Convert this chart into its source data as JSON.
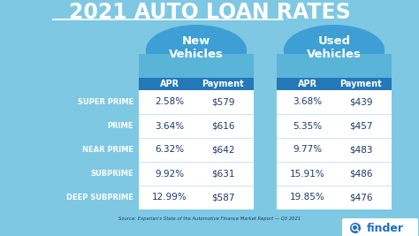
{
  "title": "2021 AUTO LOAN RATES",
  "bg_color": "#7ec8e3",
  "table_bg_light": "#5ab4d8",
  "table_header_blue": "#2d8fd4",
  "row_white": "#e8f4fc",
  "row_white2": "#d8ecf8",
  "row_divider": "#a8d4ec",
  "oval_blue": "#3d9fd4",
  "subheader_blue": "#2478b8",
  "row_categories": [
    "SUPER PRIME",
    "PRIME",
    "NEAR PRIME",
    "SUBPRIME",
    "DEEP SUBPRIME"
  ],
  "new_vehicles": {
    "label": "New\nVehicles",
    "apr": [
      "2.58%",
      "3.64%",
      "6.32%",
      "9.92%",
      "12.99%"
    ],
    "payment": [
      "$579",
      "$616",
      "$642",
      "$631",
      "$587"
    ]
  },
  "used_vehicles": {
    "label": "Used\nVehicles",
    "apr": [
      "3.68%",
      "5.35%",
      "9.77%",
      "15.91%",
      "19.85%"
    ],
    "payment": [
      "$439",
      "$457",
      "$483",
      "$486",
      "$476"
    ]
  },
  "source_text": "Source: Experian's State of the Automotive Finance Market Report — Q3 2021",
  "title_color": "#ffffff",
  "row_label_color": "#ffffff",
  "data_color": "#1a3a6b",
  "subheader_text_color": "#ffffff"
}
